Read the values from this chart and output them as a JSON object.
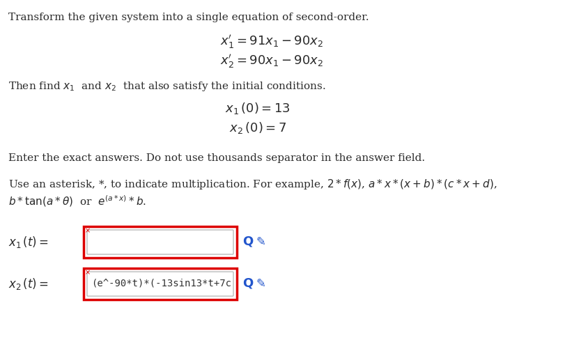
{
  "bg_color": "#ffffff",
  "text_color": "#2b2b2b",
  "red_border": "#dd0000",
  "blue_color": "#2255cc",
  "box_border_inner": "#bbbbbb",
  "title_text": "Transform the given system into a single equation of second-order.",
  "then_text": "Then find $x_1$  and $x_2$  that also satisfy the initial conditions.",
  "instruction1": "Enter the exact answers. Do not use thousands separator in the answer field.",
  "box2_text": "(e^-90*t)*(-13sin13*t+7c",
  "fig_w": 8.34,
  "fig_h": 5.21,
  "dpi": 100
}
